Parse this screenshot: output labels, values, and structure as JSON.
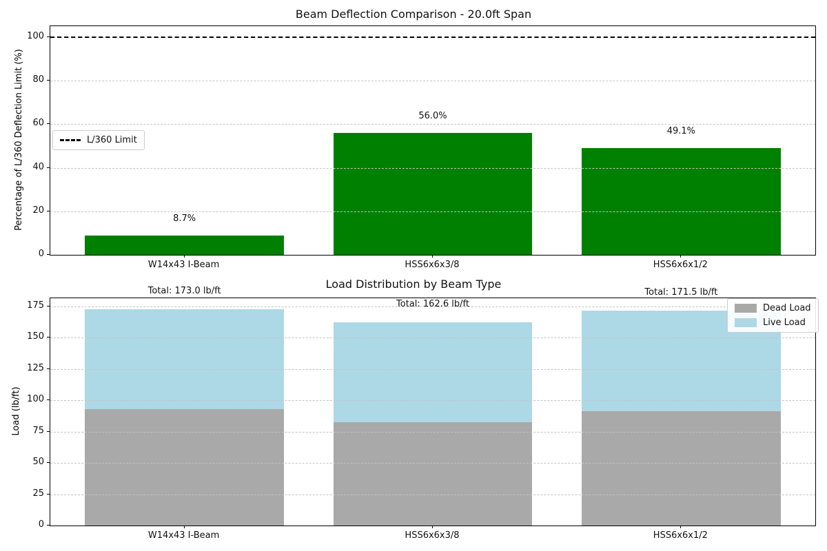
{
  "chart_data": [
    {
      "type": "bar",
      "title": "Beam Deflection Comparison - 20.0ft Span",
      "xlabel": "",
      "ylabel": "Percentage of L/360 Deflection Limit (%)",
      "categories": [
        "W14x43 I-Beam",
        "HSS6x6x3/8",
        "HSS6x6x1/2"
      ],
      "values": [
        8.7,
        56.0,
        49.1
      ],
      "bar_labels": [
        "8.7%",
        "56.0%",
        "49.1%"
      ],
      "bar_color": "#008000",
      "ylim": [
        0,
        105
      ],
      "yticks": [
        0,
        20,
        40,
        60,
        80,
        100
      ],
      "grid": true,
      "grid_style": "dashed",
      "reference_line": {
        "value": 100,
        "style": "dashed",
        "color": "#000000",
        "label": "L/360 Limit"
      },
      "legend": {
        "position": "center-left",
        "entries": [
          {
            "label": "L/360 Limit",
            "marker": "dashed-line",
            "color": "#000000"
          }
        ]
      }
    },
    {
      "type": "stacked-bar",
      "title": "Load Distribution by Beam Type",
      "xlabel": "",
      "ylabel": "Load (lb/ft)",
      "categories": [
        "W14x43 I-Beam",
        "HSS6x6x3/8",
        "HSS6x6x1/2"
      ],
      "series": [
        {
          "name": "Dead Load",
          "color": "#a9a9a9",
          "values": [
            93.0,
            82.6,
            91.5
          ]
        },
        {
          "name": "Live Load",
          "color": "#add8e6",
          "values": [
            80.0,
            80.0,
            80.0
          ]
        }
      ],
      "stack_totals": [
        173.0,
        162.6,
        171.5
      ],
      "total_labels": [
        "Total: 173.0 lb/ft",
        "Total: 162.6 lb/ft",
        "Total: 171.5 lb/ft"
      ],
      "ylim": [
        0,
        181.65
      ],
      "yticks": [
        0,
        25,
        50,
        75,
        100,
        125,
        150,
        175
      ],
      "grid": true,
      "grid_style": "dashed",
      "legend": {
        "position": "top-right",
        "entries": [
          {
            "label": "Dead Load",
            "marker": "square",
            "color": "#a9a9a9"
          },
          {
            "label": "Live Load",
            "marker": "square",
            "color": "#add8e6"
          }
        ]
      }
    }
  ]
}
